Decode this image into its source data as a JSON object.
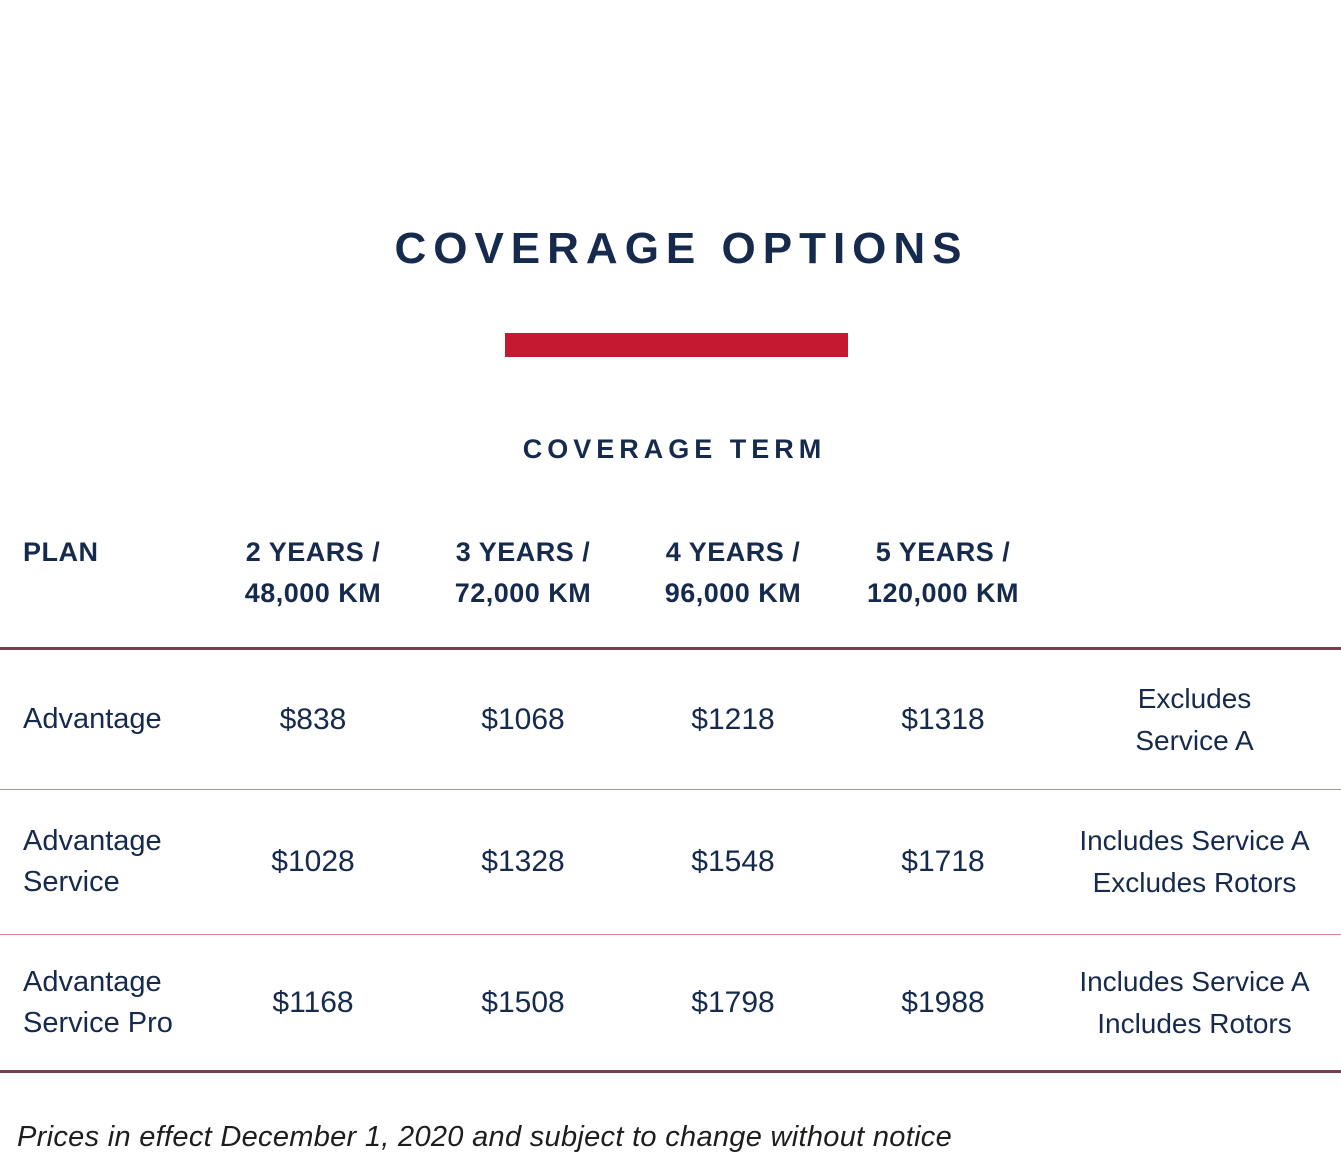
{
  "page": {
    "title": "COVERAGE OPTIONS",
    "subtitle": "COVERAGE TERM",
    "footnote": "Prices in effect December 1, 2020 and subject to change without notice"
  },
  "colors": {
    "navy_text": "#152a4c",
    "accent_red": "#c41931",
    "border_dark": "#744049",
    "border_light": "#d08c8c"
  },
  "table": {
    "plan_header": "PLAN",
    "term_headers": [
      {
        "line1": "2 YEARS /",
        "line2": "48,000 KM"
      },
      {
        "line1": "3 YEARS /",
        "line2": "72,000 KM"
      },
      {
        "line1": "4 YEARS /",
        "line2": "96,000 KM"
      },
      {
        "line1": "5 YEARS /",
        "line2": "120,000 KM"
      }
    ],
    "rows": [
      {
        "plan": "Advantage",
        "prices": [
          "$838",
          "$1068",
          "$1218",
          "$1318"
        ],
        "note_lines": [
          "Excludes",
          "Service A"
        ]
      },
      {
        "plan": "Advantage Service",
        "prices": [
          "$1028",
          "$1328",
          "$1548",
          "$1718"
        ],
        "note_lines": [
          "Includes Service A",
          "Excludes Rotors"
        ]
      },
      {
        "plan": "Advantage Service Pro",
        "prices": [
          "$1168",
          "$1508",
          "$1798",
          "$1988"
        ],
        "note_lines": [
          "Includes Service A",
          "Includes Rotors"
        ]
      }
    ]
  }
}
